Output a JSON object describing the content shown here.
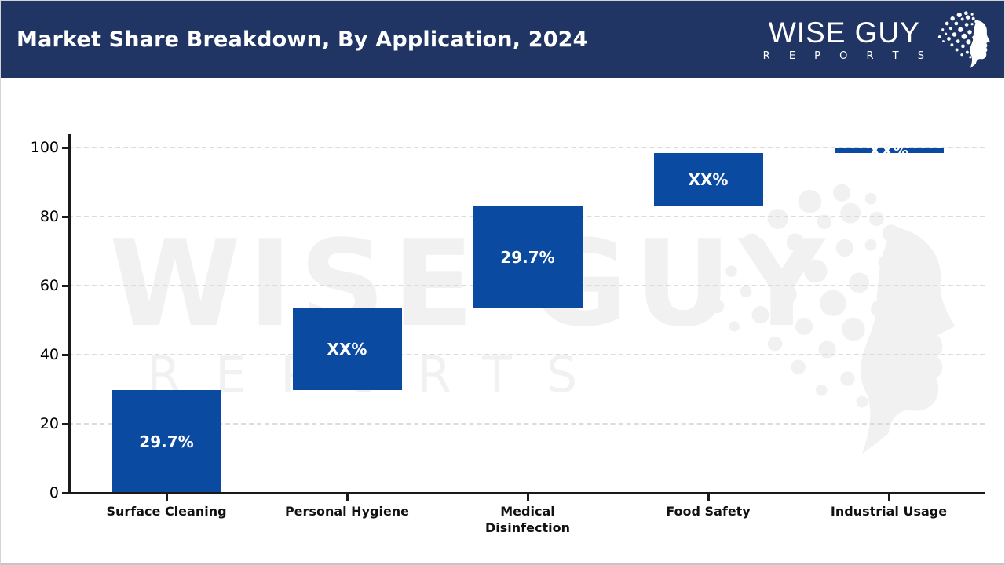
{
  "header": {
    "title": "Market Share Breakdown, By Application, 2024",
    "logo": {
      "line1": "WISE GUY",
      "line2": "R E P O R T S"
    }
  },
  "watermark": {
    "line1": "WISE GUY",
    "line2": "REPORTS"
  },
  "colors": {
    "header_bg": "#213564",
    "bar": "#0b4aa1",
    "grid": "#dcdcdc",
    "axis": "#1a1a1a",
    "watermark": "#f1f1f1",
    "bar_label": "#ffffff"
  },
  "chart_data": {
    "type": "bar",
    "subtype": "waterfall",
    "title": "Market Share Breakdown, By Application, 2024",
    "ylim": [
      0,
      100
    ],
    "yticks": [
      0,
      20,
      40,
      60,
      80,
      100
    ],
    "grid": "dashed-horizontal",
    "legend": "none",
    "categories": [
      "Surface Cleaning",
      "Personal Hygiene",
      "Medical\nDisinfection",
      "Food Safety",
      "Industrial Usage"
    ],
    "segments": [
      {
        "category": "Surface Cleaning",
        "start": 0.0,
        "end": 29.7,
        "value_label": "29.7%"
      },
      {
        "category": "Personal Hygiene",
        "start": 29.7,
        "end": 53.4,
        "value_label": "XX%"
      },
      {
        "category": "Medical Disinfection",
        "start": 53.4,
        "end": 83.1,
        "value_label": "29.7%"
      },
      {
        "category": "Food Safety",
        "start": 83.1,
        "end": 98.3,
        "value_label": "XX%"
      },
      {
        "category": "Industrial Usage",
        "start": 98.3,
        "end": 100.0,
        "value_label": "XX%"
      }
    ]
  }
}
